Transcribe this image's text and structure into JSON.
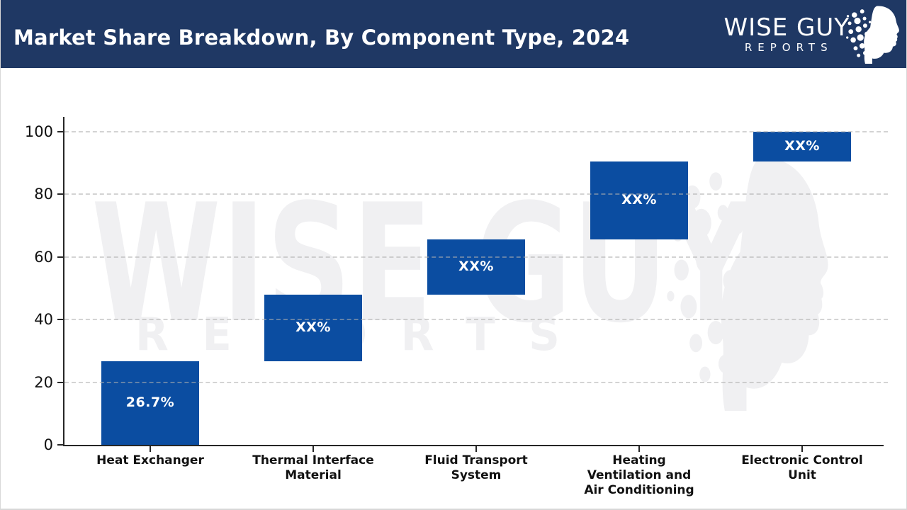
{
  "header": {
    "title": "Market Share Breakdown, By Component Type, 2024",
    "logo": {
      "line1": "WISE GUY",
      "line2": "REPORTS"
    }
  },
  "watermark": {
    "line1": "WISE GUY",
    "line2": "REPORTS"
  },
  "colors": {
    "header_bg": "#1f3864",
    "bar": "#0b4da1",
    "bar_label": "#ffffff",
    "grid": "#d9d9d9",
    "axis": "#262626",
    "watermark": "#f0f0f2"
  },
  "chart_data": {
    "type": "bar",
    "subtype": "waterfall",
    "title": "Market Share Breakdown, By Component Type, 2024",
    "xlabel": "",
    "ylabel": "",
    "ylim": [
      0,
      105
    ],
    "yticks": [
      0,
      20,
      40,
      60,
      80,
      100
    ],
    "grid": "horizontal-dashed",
    "legend": "none",
    "categories": [
      "Heat Exchanger",
      "Thermal Interface Material",
      "Fluid Transport System",
      "Heating Ventilation and Air Conditioning",
      "Electronic Control Unit"
    ],
    "segments": [
      {
        "category": "Heat Exchanger",
        "label_lines": [
          "Heat Exchanger"
        ],
        "start": 0,
        "end": 26.7,
        "bar_label": "26.7%"
      },
      {
        "category": "Thermal Interface Material",
        "label_lines": [
          "Thermal Interface",
          "Material"
        ],
        "start": 26.7,
        "end": 48.0,
        "bar_label": "XX%"
      },
      {
        "category": "Fluid Transport System",
        "label_lines": [
          "Fluid Transport",
          "System"
        ],
        "start": 48.0,
        "end": 65.7,
        "bar_label": "XX%"
      },
      {
        "category": "Heating Ventilation and Air Conditioning",
        "label_lines": [
          "Heating",
          "Ventilation and",
          "Air Conditioning"
        ],
        "start": 65.7,
        "end": 90.6,
        "bar_label": "XX%"
      },
      {
        "category": "Electronic Control Unit",
        "label_lines": [
          "Electronic Control",
          "Unit"
        ],
        "start": 90.6,
        "end": 100.0,
        "bar_label": "XX%"
      }
    ]
  }
}
